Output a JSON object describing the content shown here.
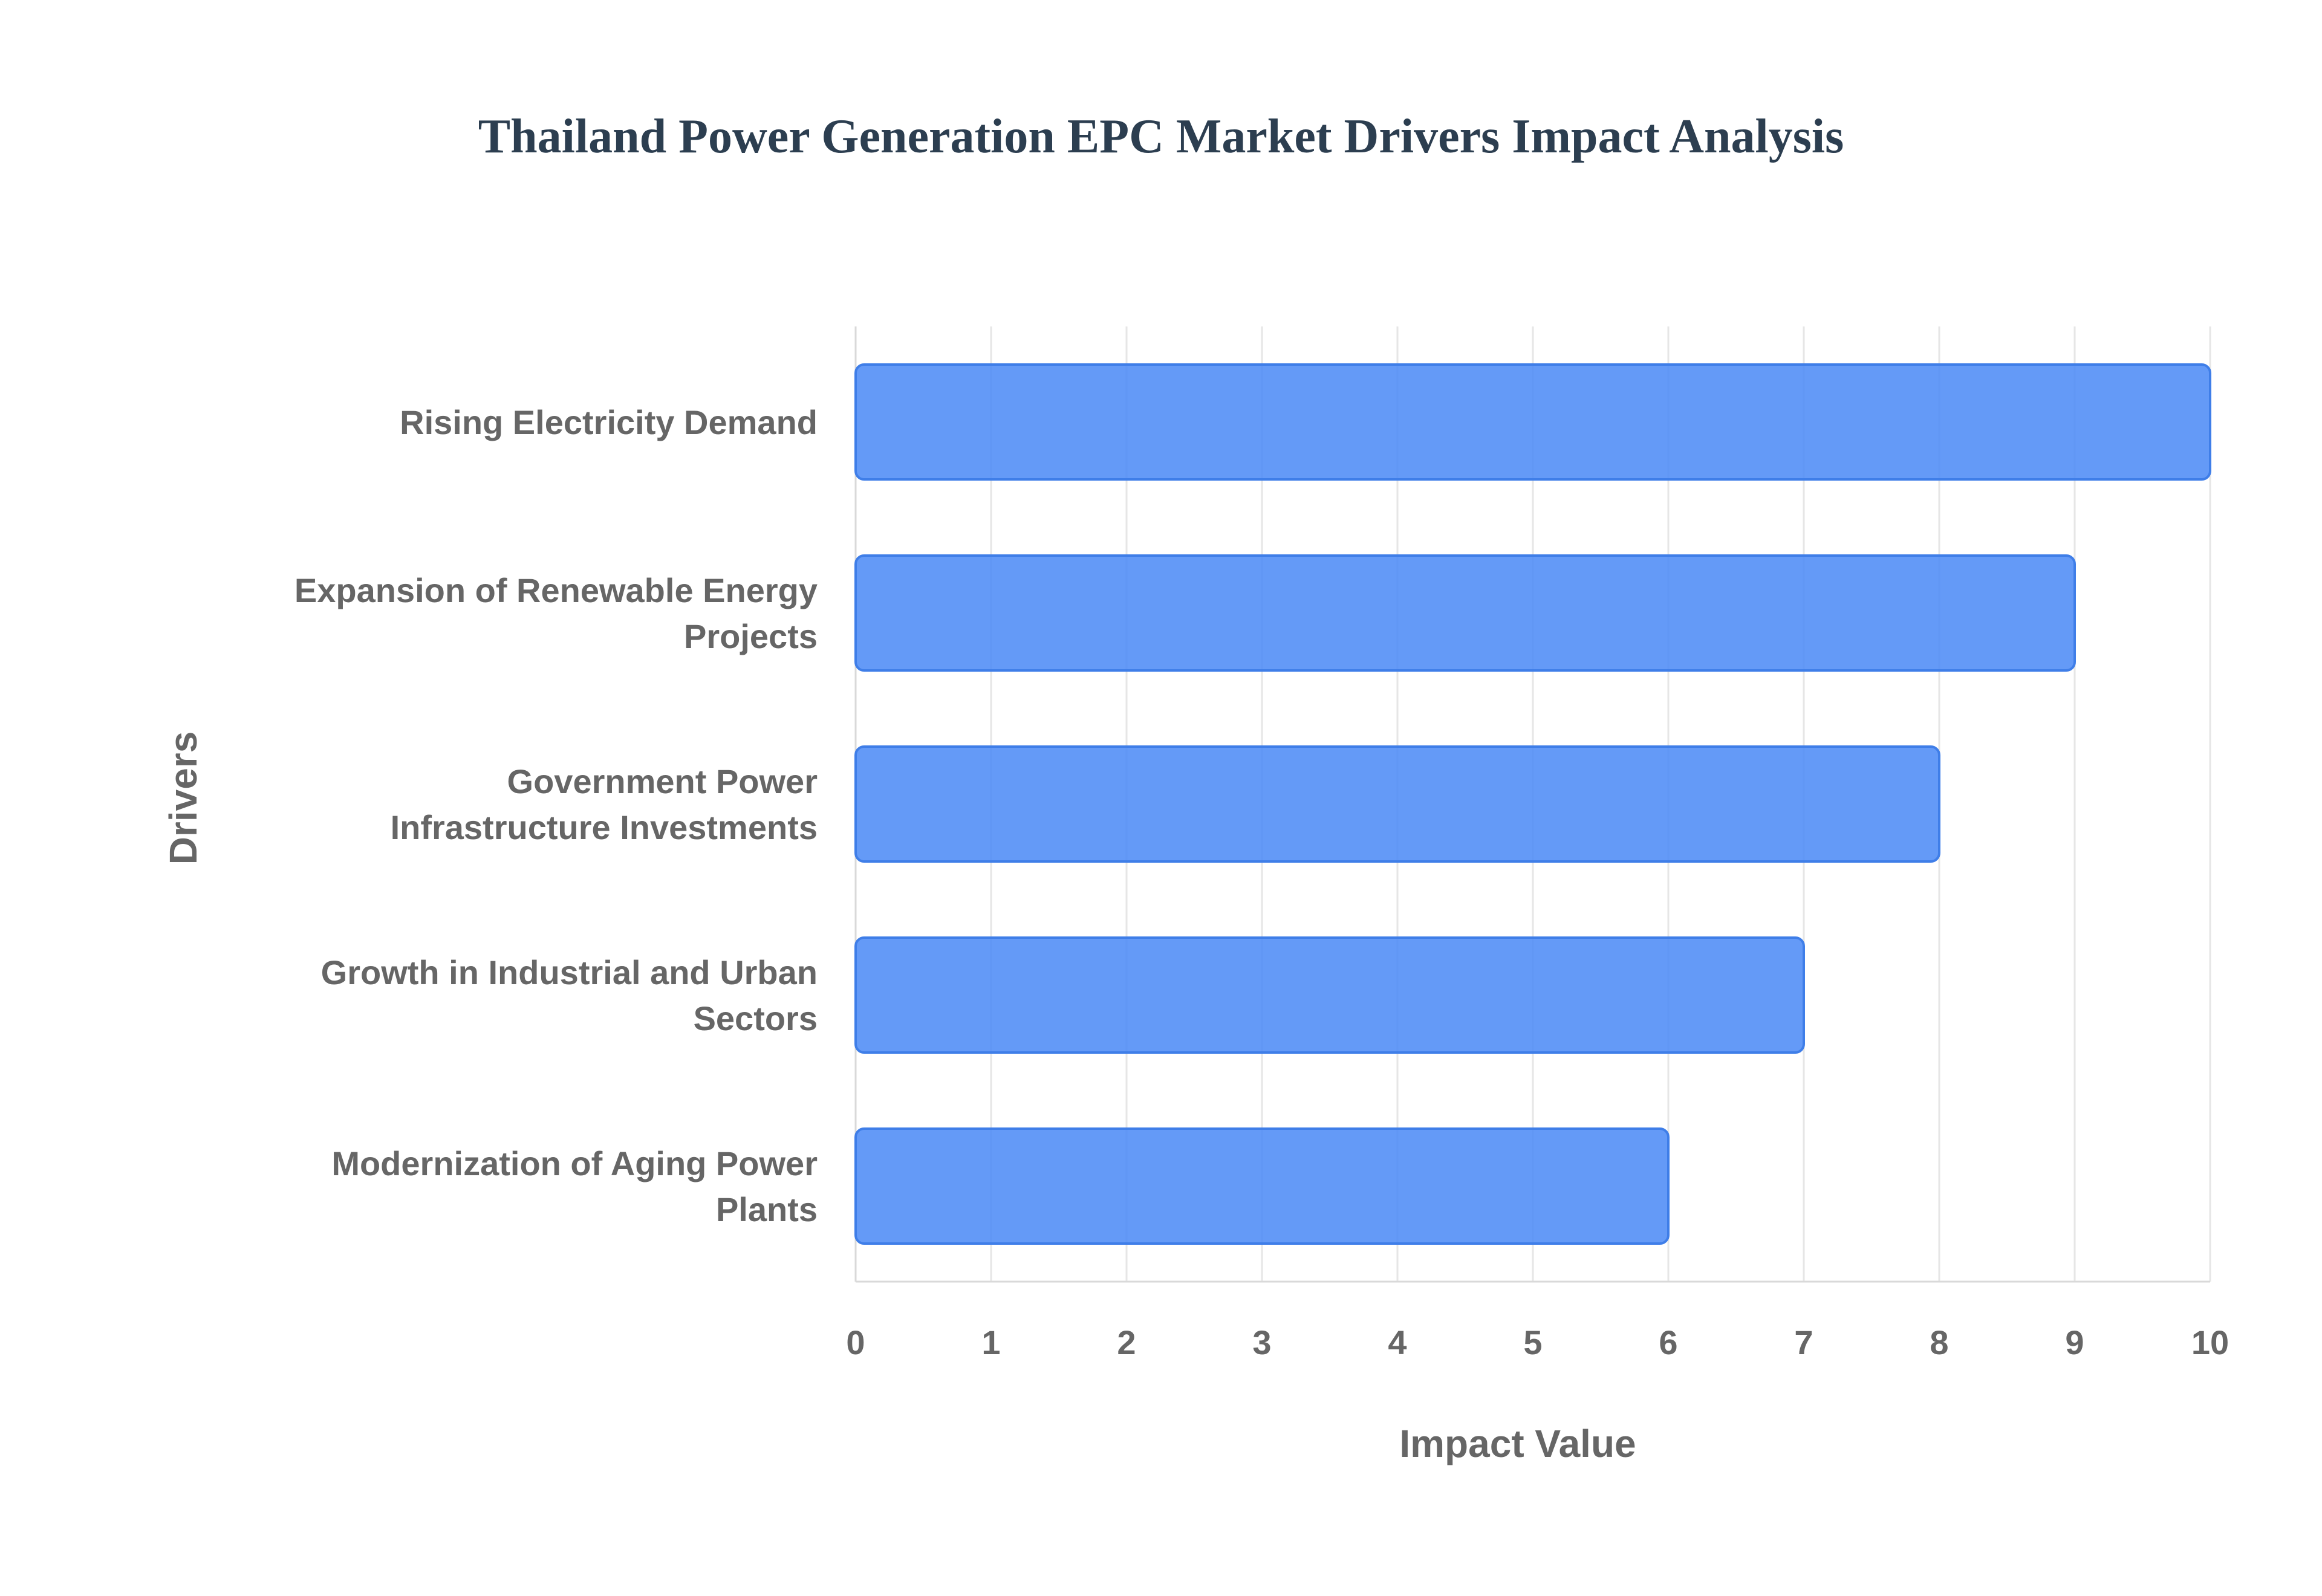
{
  "chart_data": {
    "type": "bar",
    "orientation": "horizontal",
    "title": "Thailand Power Generation EPC Market Drivers Impact Analysis",
    "xlabel": "Impact Value",
    "ylabel": "Drivers",
    "xlim": [
      0,
      10
    ],
    "x_ticks": [
      0,
      1,
      2,
      3,
      4,
      5,
      6,
      7,
      8,
      9,
      10
    ],
    "grid": true,
    "legend": "none",
    "categories": [
      [
        "Rising Electricity Demand"
      ],
      [
        "Expansion of Renewable Energy",
        "Projects"
      ],
      [
        "Government Power",
        "Infrastructure Investments"
      ],
      [
        "Growth in Industrial and Urban",
        "Sectors"
      ],
      [
        "Modernization of Aging Power",
        "Plants"
      ]
    ],
    "values": [
      10,
      9,
      8,
      7,
      6
    ],
    "colors": {
      "bar_fill": "#4e8cf6",
      "bar_stroke": "#3f7ee8",
      "title": "#2c3e50",
      "label": "#666666"
    }
  }
}
